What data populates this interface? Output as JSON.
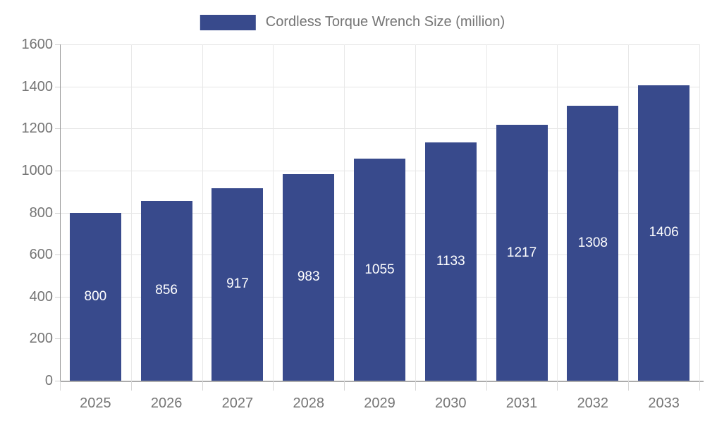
{
  "legend": {
    "label": "Cordless Torque Wrench Size (million)",
    "swatch_color": "#384A8C"
  },
  "chart_data": {
    "type": "bar",
    "title": "",
    "xlabel": "",
    "ylabel": "",
    "categories": [
      "2025",
      "2026",
      "2027",
      "2028",
      "2029",
      "2030",
      "2031",
      "2032",
      "2033"
    ],
    "series": [
      {
        "name": "Cordless Torque Wrench Size (million)",
        "values": [
          800,
          856,
          917,
          983,
          1055,
          1133,
          1217,
          1308,
          1406
        ]
      }
    ],
    "value_labels_shown": true,
    "value_label_position": "inside-center",
    "value_label_color": "#ffffff",
    "ylim": [
      0,
      1600
    ],
    "yticks": [
      0,
      200,
      400,
      600,
      800,
      1000,
      1200,
      1400,
      1600
    ],
    "grid": true,
    "legend_position": "top-center",
    "bar_color": "#384A8C",
    "axis_label_color": "#757575",
    "gridline_color": "#e4e4e4"
  }
}
